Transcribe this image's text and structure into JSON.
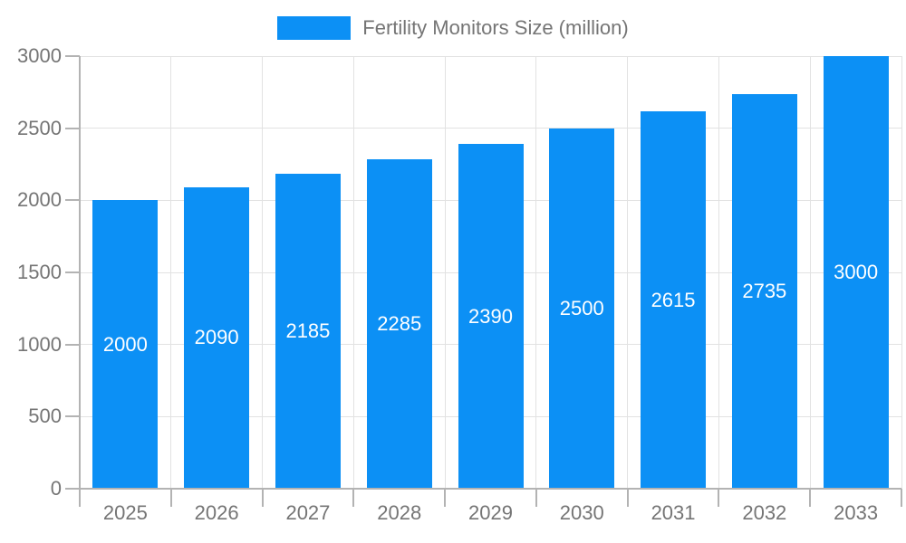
{
  "chart_data": {
    "type": "bar",
    "title": "",
    "legend_label": "Fertility Monitors Size (million)",
    "legend_position": "top",
    "categories": [
      "2025",
      "2026",
      "2027",
      "2028",
      "2029",
      "2030",
      "2031",
      "2032",
      "2033"
    ],
    "values": [
      2000,
      2090,
      2185,
      2285,
      2390,
      2500,
      2615,
      2735,
      3000
    ],
    "xlabel": "",
    "ylabel": "",
    "ylim": [
      0,
      3000
    ],
    "yticks": [
      0,
      500,
      1000,
      1500,
      2000,
      2500,
      3000
    ],
    "grid": true,
    "bar_labels_visible": true,
    "colors": {
      "bar": "#0C90F5",
      "bar_label": "#FFFFFF",
      "axis_text": "#757575",
      "axis_line": "#B3B3B3",
      "gridline": "#E2E2E2",
      "background": "#FFFFFF"
    }
  }
}
